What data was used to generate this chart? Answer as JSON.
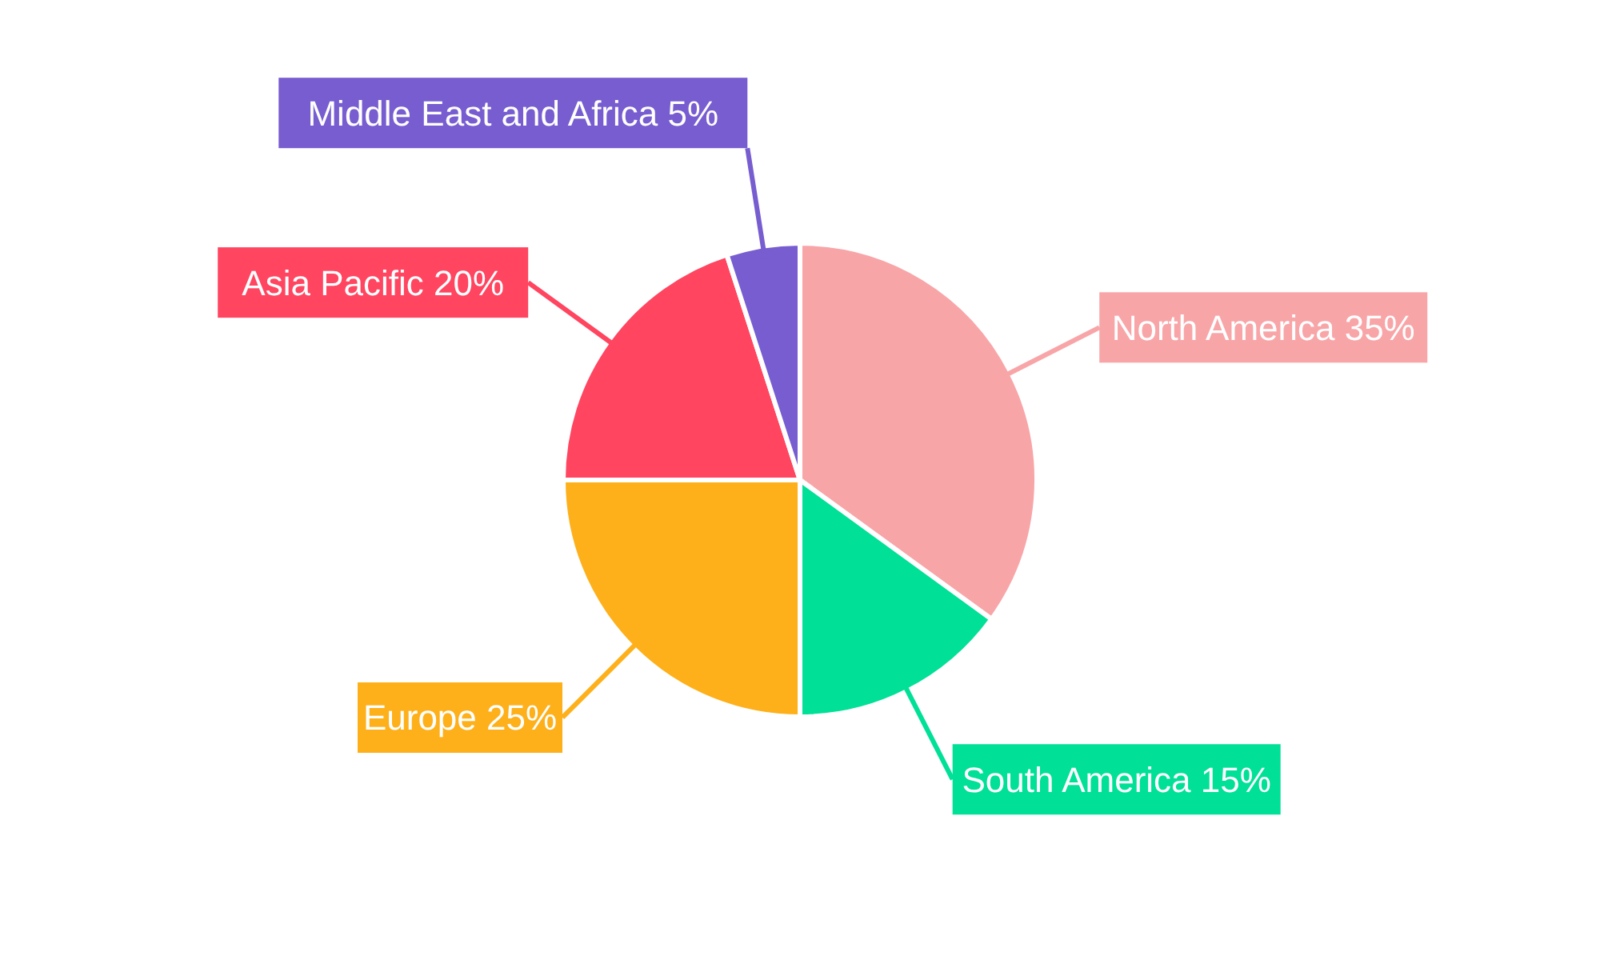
{
  "chart_data": {
    "type": "pie",
    "categories": [
      "North America",
      "South America",
      "Europe",
      "Asia Pacific",
      "Middle East and Africa"
    ],
    "values": [
      35,
      15,
      25,
      20,
      5
    ],
    "value_labels": [
      "35%",
      "15%",
      "25%",
      "20%",
      "5%"
    ],
    "colors": [
      "#f8a5a8",
      "#00e096",
      "#feb01a",
      "#ff4560",
      "#775dd0"
    ]
  }
}
